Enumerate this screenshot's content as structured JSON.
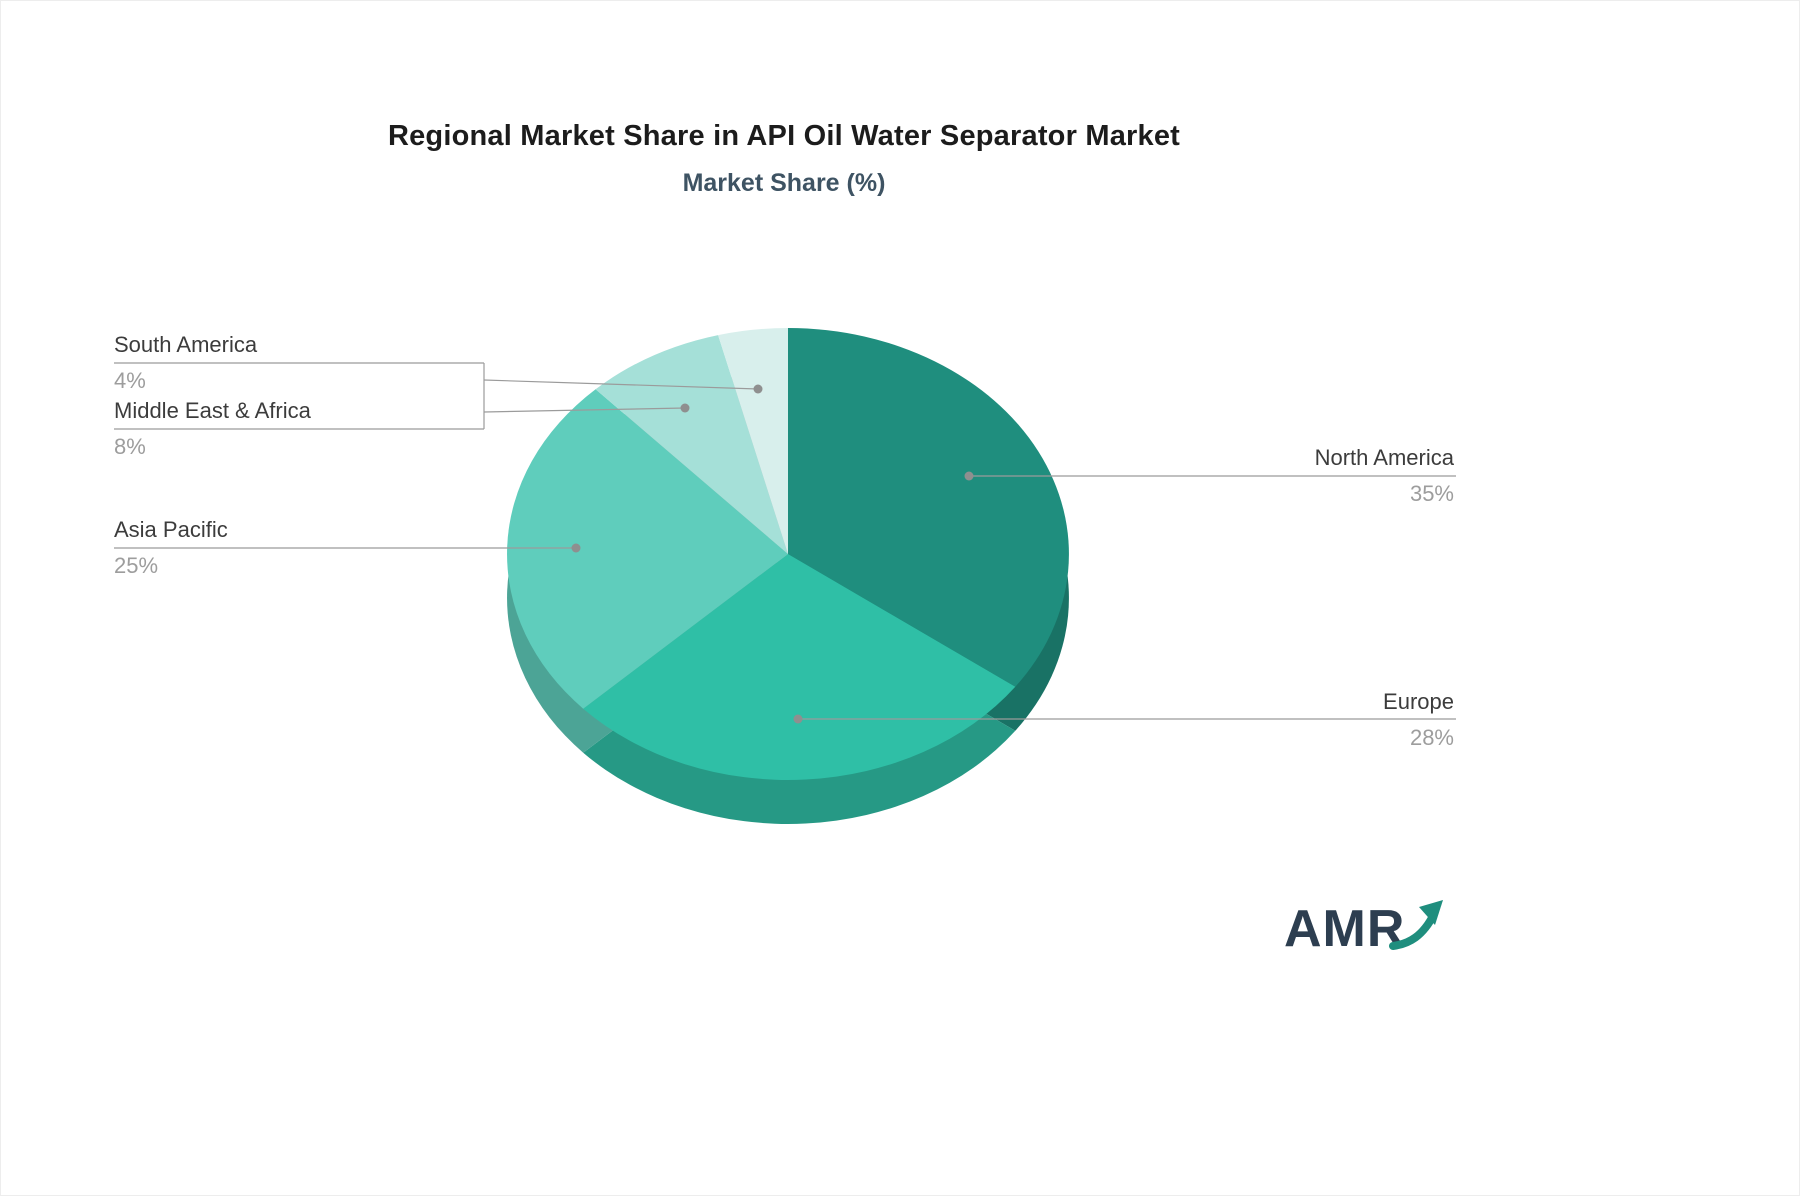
{
  "title": "Regional Market Share in API Oil Water Separator Market",
  "subtitle": "Market Share (%)",
  "logo": {
    "text": "AMR"
  },
  "chart_data": {
    "type": "pie",
    "title": "Regional Market Share in API Oil Water Separator Market",
    "subtitle": "Market Share (%)",
    "labels": [
      "North America",
      "Europe",
      "Asia Pacific",
      "Middle East & Africa",
      "South America"
    ],
    "values": [
      35,
      28,
      25,
      8,
      4
    ],
    "value_labels": [
      "35%",
      "28%",
      "25%",
      "8%",
      "4%"
    ],
    "colors": [
      "#1f8e7e",
      "#2fbfa6",
      "#5fcdbc",
      "#a5e0d8",
      "#d8efec"
    ],
    "start_angle_deg": -90,
    "direction": "clockwise",
    "style": "3d",
    "legend_position": "callouts",
    "units": "%"
  }
}
